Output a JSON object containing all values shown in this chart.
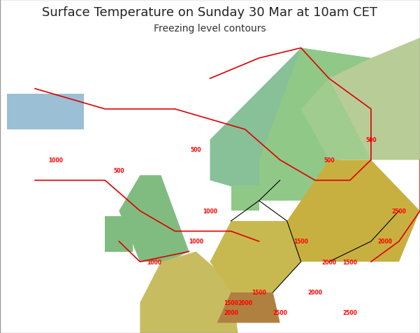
{
  "title": "Surface Temperature on Sunday 30 Mar at 10am CET",
  "subtitle": "Freezing level contours",
  "title_fontsize": 13,
  "subtitle_fontsize": 10,
  "title_color": "#222222",
  "subtitle_color": "#333333",
  "header_bg": "#f0f0f0",
  "border_color": "#999999",
  "fig_width": 6.01,
  "fig_height": 4.77,
  "dpi": 100,
  "map_bg_color": "#ccd9e8",
  "iceland_color": "#7ab3d4",
  "norway_color": "#5ec0b0",
  "sweden_color": "#a0d08a",
  "uk_color": "#78c070",
  "france_color": "#c8c060",
  "germany_color": "#d0b850",
  "alps_color": "#b07030",
  "scandinavia_mountain_color": "#6090a0",
  "contour_red_color": "#dd0000",
  "contour_black_color": "#000000",
  "contour_blue_color": "#0000aa"
}
